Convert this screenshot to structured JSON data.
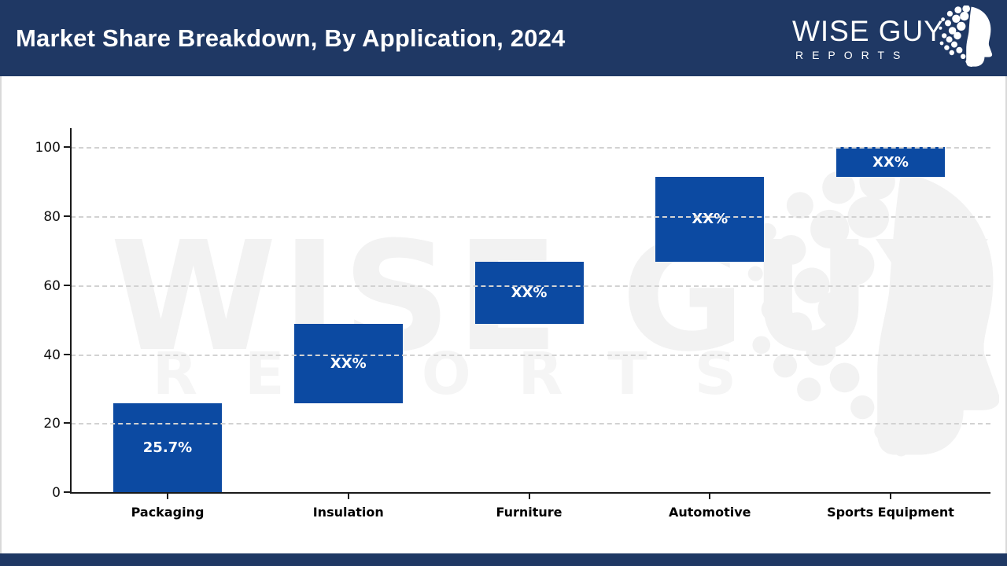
{
  "header": {
    "title": "Market Share Breakdown, By Application, 2024",
    "logo": {
      "line1": "WISE GUY",
      "line2": "REPORTS"
    }
  },
  "watermark": {
    "line1": "WISE GUY",
    "line2": "REPORTS"
  },
  "colors": {
    "header_bg": "#1f3864",
    "footer_bg": "#1f3864",
    "bar": "#0c4aa2",
    "bar_label": "#ffffff",
    "gridline": "#d2d2d2",
    "axis": "#1a1a1a",
    "watermark": "#f2f2f2"
  },
  "chart_data": {
    "type": "bar",
    "subtype": "waterfall-floating-bars",
    "title": "Market Share Breakdown, By Application, 2024",
    "xlabel": "",
    "ylabel": "",
    "categories": [
      "Packaging",
      "Insulation",
      "Furniture",
      "Automotive",
      "Sports Equipment"
    ],
    "segments": [
      {
        "category": "Packaging",
        "start": 0,
        "end": 25.7,
        "label": "25.7%"
      },
      {
        "category": "Insulation",
        "start": 25.7,
        "end": 48.8,
        "label": "XX%"
      },
      {
        "category": "Furniture",
        "start": 48.8,
        "end": 66.8,
        "label": "XX%"
      },
      {
        "category": "Automotive",
        "start": 66.8,
        "end": 91.4,
        "label": "XX%"
      },
      {
        "category": "Sports Equipment",
        "start": 91.4,
        "end": 100,
        "label": "XX%"
      }
    ],
    "yticks": [
      0,
      20,
      40,
      60,
      80,
      100
    ],
    "ylim": [
      0,
      105
    ],
    "grid": "dashed-horizontal",
    "legend": "none"
  }
}
